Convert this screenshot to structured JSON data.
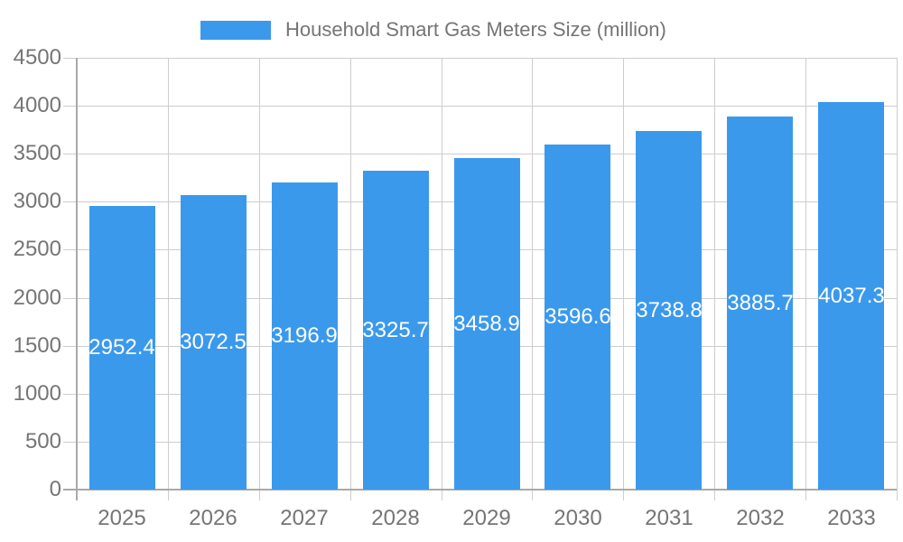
{
  "legend": {
    "label": "Household Smart Gas Meters Size (million)"
  },
  "colors": {
    "bar": "#3B99EC",
    "bar_label_text": "#ffffff",
    "axis_text": "#757575",
    "gridline": "#cdcdcd",
    "axis_line": "#a9a9a9",
    "background": "#ffffff"
  },
  "chart_data": {
    "type": "bar",
    "title": "Household Smart Gas Meters Size (million)",
    "categories": [
      "2025",
      "2026",
      "2027",
      "2028",
      "2029",
      "2030",
      "2031",
      "2032",
      "2033"
    ],
    "series": [
      {
        "name": "Household Smart Gas Meters Size (million)",
        "values": [
          2952.4,
          3072.5,
          3196.9,
          3325.7,
          3458.9,
          3596.6,
          3738.8,
          3885.7,
          4037.3
        ]
      }
    ],
    "data_labels": [
      "2952.4",
      "3072.5",
      "3196.9",
      "3325.7",
      "3458.9",
      "3596.6",
      "3738.8",
      "3885.7",
      "4037.3"
    ],
    "xlabel": "",
    "ylabel": "",
    "ylim": [
      0,
      4500
    ],
    "yticks": [
      0,
      500,
      1000,
      1500,
      2000,
      2500,
      3000,
      3500,
      4000,
      4500
    ],
    "grid": true,
    "legend_position": "top"
  }
}
